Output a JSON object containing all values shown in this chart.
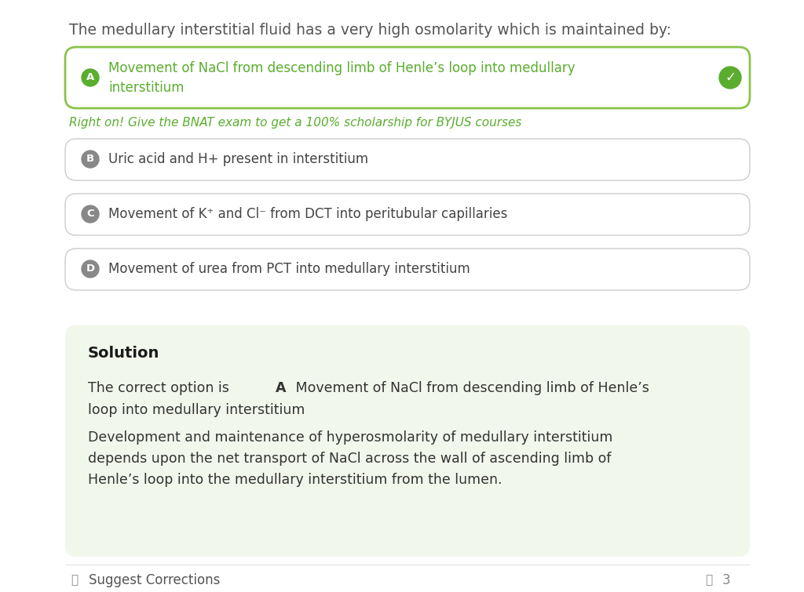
{
  "page_bg": "#ffffff",
  "question_text": "The medullary interstitial fluid has a very high osmolarity which is maintained by:",
  "question_color": "#555555",
  "options": [
    {
      "label": "A",
      "text_line1": "Movement of NaCl from descending limb of Henle’s loop into medullary",
      "text_line2": "interstitium",
      "correct": true,
      "label_bg": "#5aad2e",
      "text_color": "#5aad2e",
      "border_color": "#8bc34a",
      "box_bg": "#ffffff",
      "has_check": true
    },
    {
      "label": "B",
      "text_line1": "Uric acid and H+ present in interstitium",
      "text_line2": "",
      "correct": false,
      "label_bg": "#888888",
      "text_color": "#444444",
      "border_color": "#cccccc",
      "box_bg": "#ffffff",
      "has_check": false
    },
    {
      "label": "C",
      "text_line1": "Movement of K⁺ and Cl⁻ from DCT into peritubular capillaries",
      "text_line2": "",
      "correct": false,
      "label_bg": "#888888",
      "text_color": "#444444",
      "border_color": "#cccccc",
      "box_bg": "#ffffff",
      "has_check": false
    },
    {
      "label": "D",
      "text_line1": "Movement of urea from PCT into medullary interstitium",
      "text_line2": "",
      "correct": false,
      "label_bg": "#888888",
      "text_color": "#444444",
      "border_color": "#cccccc",
      "box_bg": "#ffffff",
      "has_check": false
    }
  ],
  "feedback_text": "Right on! Give the BNAT exam to get a 100% scholarship for BYJUS courses",
  "feedback_color": "#5aad2e",
  "solution_bg": "#f2f7ec",
  "solution_title": "Solution",
  "solution_line1_pre": "The correct option is ",
  "solution_line1_bold": "A",
  "solution_line1_post": " Movement of NaCl from descending limb of Henle’s",
  "solution_line2": "loop into medullary interstitium",
  "solution_para2_line1": "Development and maintenance of hyperosmolarity of medullary interstitium",
  "solution_para2_line2": "depends upon the net transport of NaCl across the wall of ascending limb of",
  "solution_para2_line3": "Henle’s loop into the medullary interstitium from the lumen.",
  "suggest_text": "Suggest Corrections",
  "like_count": "3",
  "separator_color": "#e0e0e0"
}
